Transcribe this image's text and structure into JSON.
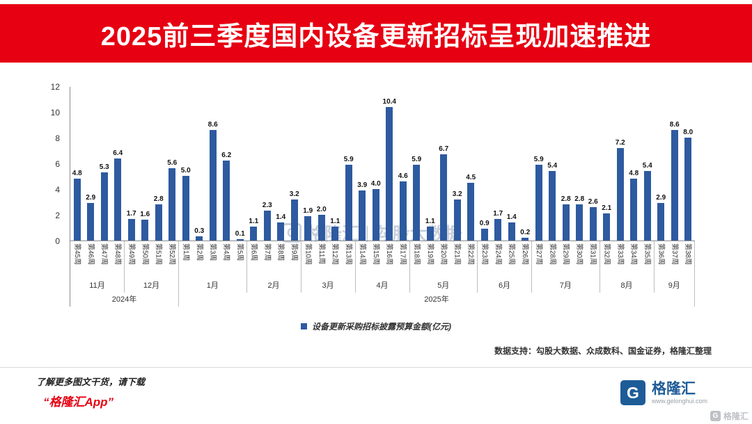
{
  "banner": {
    "title": "2025前三季度国内设备更新招标呈现加速推进",
    "background": "#e60012"
  },
  "chart_data": {
    "type": "bar",
    "title": "2025前三季度国内设备更新招标呈现加速推进",
    "legend": "设备更新采购招标披露预算金额(亿元)",
    "legend_position": "bottom-center",
    "unit": "亿元",
    "ylim": [
      0,
      12
    ],
    "yticks": [
      0,
      2,
      4,
      6,
      8,
      10,
      12
    ],
    "grid": false,
    "bar_color": "#2e5aa0",
    "years": [
      {
        "year": "2024年",
        "months": [
          {
            "month": "11月",
            "weeks": [
              [
                "第45周",
                4.8
              ],
              [
                "第46周",
                2.9
              ],
              [
                "第47周",
                5.3
              ],
              [
                "第48周",
                6.4
              ]
            ]
          },
          {
            "month": "12月",
            "weeks": [
              [
                "第49周",
                1.7
              ],
              [
                "第50周",
                1.6
              ],
              [
                "第51周",
                2.8
              ],
              [
                "第52周",
                5.6
              ]
            ]
          }
        ]
      },
      {
        "year": "2025年",
        "months": [
          {
            "month": "1月",
            "weeks": [
              [
                "第1周",
                5.0
              ],
              [
                "第2周",
                0.3
              ],
              [
                "第3周",
                8.6
              ],
              [
                "第4周",
                6.2
              ],
              [
                "第5周",
                0.1
              ]
            ]
          },
          {
            "month": "2月",
            "weeks": [
              [
                "第6周",
                1.1
              ],
              [
                "第7周",
                2.3
              ],
              [
                "第8周",
                1.4
              ],
              [
                "第9周",
                3.2
              ]
            ]
          },
          {
            "month": "3月",
            "weeks": [
              [
                "第10周",
                1.9
              ],
              [
                "第11周",
                2.0
              ],
              [
                "第12周",
                1.1
              ],
              [
                "第13周",
                5.9
              ]
            ]
          },
          {
            "month": "4月",
            "weeks": [
              [
                "第14周",
                3.9
              ],
              [
                "第15周",
                4.0
              ],
              [
                "第16周",
                10.4
              ],
              [
                "第17周",
                4.6
              ]
            ]
          },
          {
            "month": "5月",
            "weeks": [
              [
                "第18周",
                5.9
              ],
              [
                "第19周",
                1.1
              ],
              [
                "第20周",
                6.7
              ],
              [
                "第21周",
                3.2
              ],
              [
                "第22周",
                4.5
              ]
            ]
          },
          {
            "month": "6月",
            "weeks": [
              [
                "第23周",
                0.9
              ],
              [
                "第24周",
                1.7
              ],
              [
                "第25周",
                1.4
              ],
              [
                "第26周",
                0.2
              ]
            ]
          },
          {
            "month": "7月",
            "weeks": [
              [
                "第27周",
                5.9
              ],
              [
                "第28周",
                5.4
              ],
              [
                "第29周",
                2.8
              ],
              [
                "第30周",
                2.8
              ],
              [
                "第31周",
                2.6
              ]
            ]
          },
          {
            "month": "8月",
            "weeks": [
              [
                "第32周",
                2.1
              ],
              [
                "第33周",
                7.2
              ],
              [
                "第34周",
                4.8
              ],
              [
                "第35周",
                5.4
              ]
            ]
          },
          {
            "month": "9月",
            "weeks": [
              [
                "第36周",
                2.9
              ],
              [
                "第37周",
                8.6
              ],
              [
                "第38周",
                8.0
              ]
            ]
          }
        ]
      }
    ]
  },
  "watermark": {
    "g": "G",
    "brand": "格隆汇",
    "divider": "|",
    "name": "勾股大数据"
  },
  "source_note": "数据支持：勾股大数据、众成数科、国金证券，格隆汇整理",
  "footer": {
    "line1": "了解更多图文干货，请下载",
    "line2": "“格隆汇App”"
  },
  "brand": {
    "g": "G",
    "name": "格隆汇",
    "url": "www.gelonghui.com"
  },
  "corner": {
    "g": "G",
    "name": "格隆汇"
  }
}
